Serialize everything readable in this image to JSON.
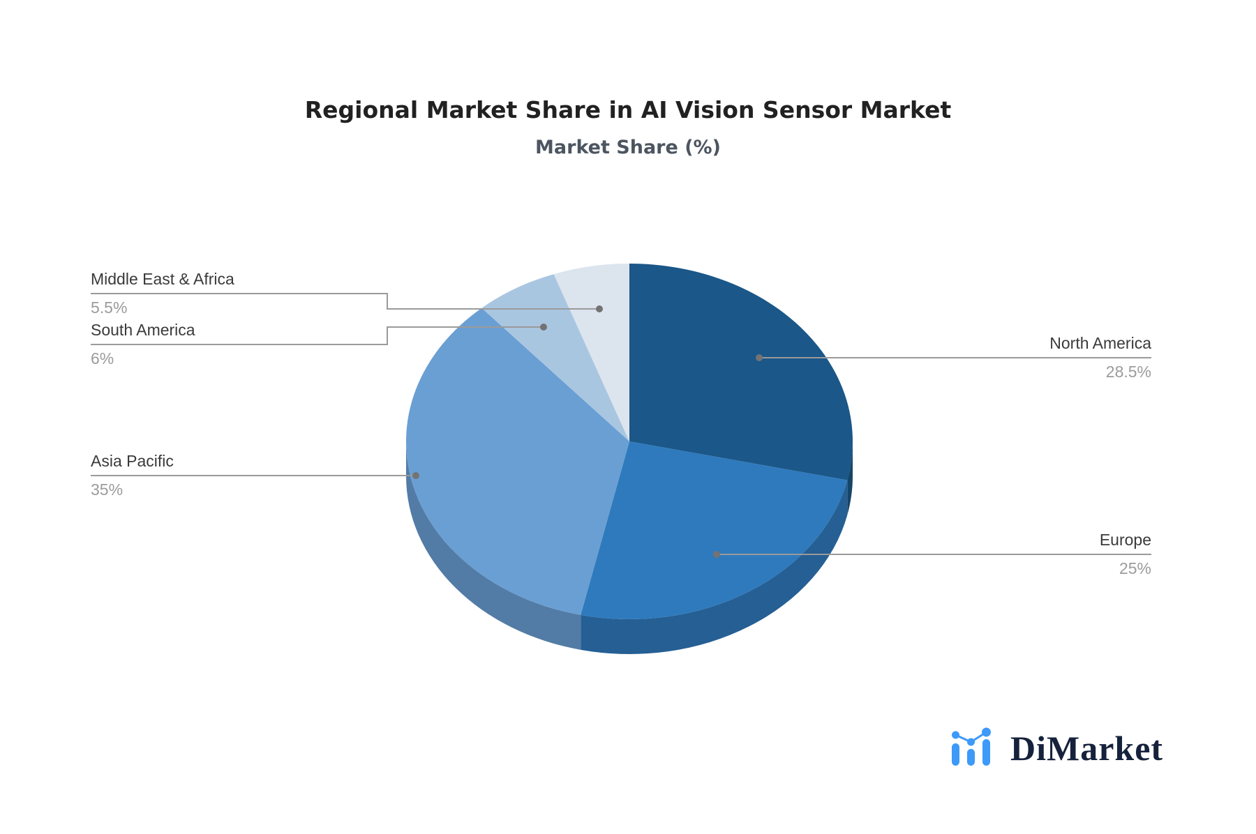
{
  "title": "Regional Market Share in AI Vision Sensor Market",
  "subtitle": "Market Share (%)",
  "brand": {
    "name": "DiMarket",
    "icon": "bar-line-chart-icon"
  },
  "colors": {
    "background": "#FFFFFF",
    "title_text": "#212121",
    "subtitle_text": "#4C5560",
    "label_text": "#3A3A3A",
    "value_text": "#9B9B9B",
    "leader_line": "#9A9A9A",
    "leader_dot": "#737373",
    "logo_blue": "#3D9AF8",
    "logo_navy": "#16223C"
  },
  "chart_data": {
    "type": "pie",
    "title": "Regional Market Share in AI Vision Sensor Market",
    "subtitle": "Market Share (%)",
    "unit": "%",
    "effect": "3d",
    "start_angle_deg_from_top": 0,
    "direction": "clockwise",
    "legend_position": "callout-labels",
    "labels": [
      "North America",
      "Europe",
      "Asia Pacific",
      "South America",
      "Middle East & Africa"
    ],
    "values": [
      28.5,
      25,
      35,
      6,
      5.5
    ],
    "display_values": [
      "28.5%",
      "25%",
      "35%",
      "6%",
      "5.5%"
    ],
    "colors": [
      "#1B5788",
      "#2E7ABD",
      "#6A9FD3",
      "#A9C6E1",
      "#DCE4EE"
    ],
    "rim_colors": [
      "#154668",
      "#255F94",
      "#527CA6",
      "#8FABC6",
      "#B9C6D6"
    ]
  },
  "callouts": [
    {
      "label": "North America",
      "value": "28.5%",
      "side": "right"
    },
    {
      "label": "Europe",
      "value": "25%",
      "side": "right"
    },
    {
      "label": "Asia Pacific",
      "value": "35%",
      "side": "left"
    },
    {
      "label": "South America",
      "value": "6%",
      "side": "left"
    },
    {
      "label": "Middle East & Africa",
      "value": "5.5%",
      "side": "left"
    }
  ]
}
